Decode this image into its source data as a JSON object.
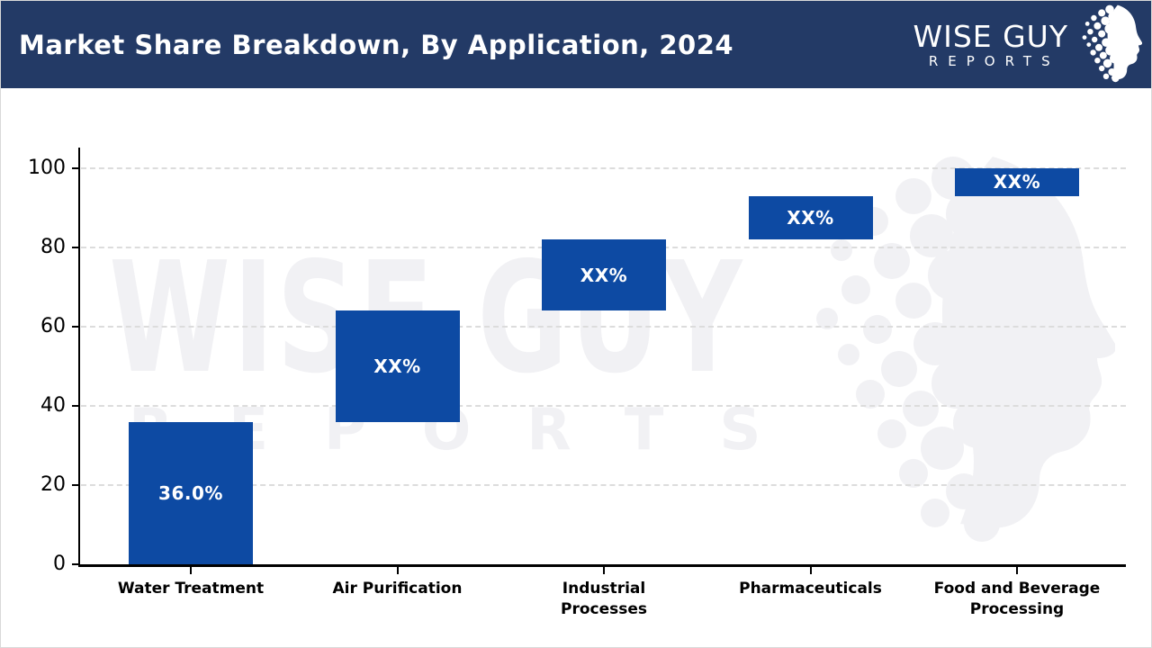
{
  "header": {
    "title": "Market Share Breakdown, By Application, 2024",
    "logo": {
      "wordmark": "WISE GUY",
      "sub": "REPORTS"
    }
  },
  "watermark": {
    "wordmark": "WISE GUY",
    "sub": "REPORTS"
  },
  "chart_data": {
    "type": "bar",
    "subtype": "waterfall",
    "title": "Market Share Breakdown, By Application, 2024",
    "categories": [
      "Water Treatment",
      "Air Purification",
      "Industrial\nProcesses",
      "Pharmaceuticals",
      "Food and Beverage\nProcessing"
    ],
    "segments": [
      {
        "category": "Water Treatment",
        "start": 0,
        "end": 36,
        "value": 36,
        "bar_text": "36.0%"
      },
      {
        "category": "Air Purification",
        "start": 36,
        "end": 64,
        "value": 28,
        "bar_text": "XX%"
      },
      {
        "category": "Industrial Processes",
        "start": 64,
        "end": 82,
        "value": 18,
        "bar_text": "XX%"
      },
      {
        "category": "Pharmaceuticals",
        "start": 82,
        "end": 93,
        "value": 11,
        "bar_text": "XX%"
      },
      {
        "category": "Food and Beverage Processing",
        "start": 93,
        "end": 100,
        "value": 7,
        "bar_text": "XX%"
      }
    ],
    "yticks": [
      0,
      20,
      40,
      60,
      80,
      100
    ],
    "ylim": [
      0,
      105
    ],
    "xlabel": "",
    "ylabel": "",
    "legend": "none",
    "grid": "horizontal-dashed",
    "colors": {
      "bar": "#0d4aa3",
      "grid": "#dcdcdc",
      "axis": "#000000",
      "bar_label": "#ffffff",
      "header_bg": "#233a66",
      "watermark": "#f1f1f4"
    }
  }
}
